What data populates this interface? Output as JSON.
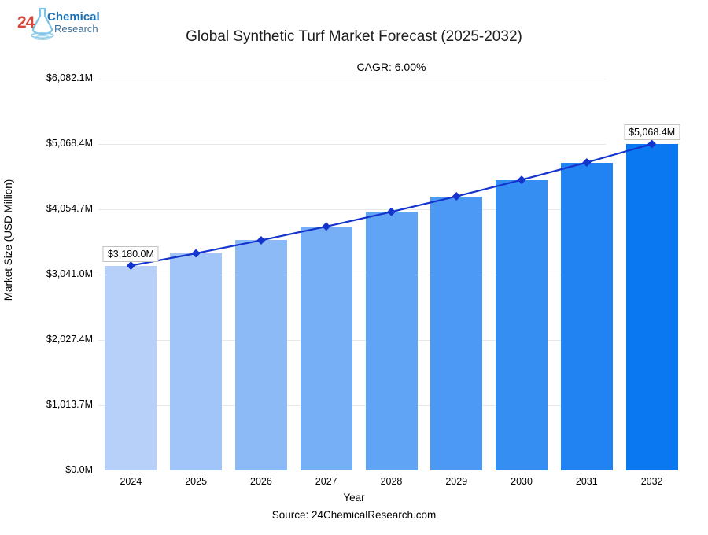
{
  "logo": {
    "number": "24",
    "line1": "Chemical",
    "line2": "Research"
  },
  "header": {
    "title": "Global Synthetic Turf Market Forecast (2025-2032)",
    "subtitle": "CAGR: 6.00%"
  },
  "source": "Source: 24ChemicalResearch.com",
  "chart_data": {
    "type": "bar",
    "title": "Global Synthetic Turf Market Forecast (2025-2032)",
    "subtitle": "CAGR: 6.00%",
    "xlabel": "Year",
    "ylabel": "Market Size (USD Million)",
    "categories": [
      "2024",
      "2025",
      "2026",
      "2027",
      "2028",
      "2029",
      "2030",
      "2031",
      "2032"
    ],
    "series": [
      {
        "name": "Market Size (bar)",
        "type": "bar",
        "values": [
          3180.0,
          3370.8,
          3573.0,
          3787.4,
          4014.7,
          4255.5,
          4510.9,
          4781.5,
          5068.4
        ]
      },
      {
        "name": "Trend (line with diamond markers)",
        "type": "line",
        "values": [
          3180.0,
          3370.8,
          3573.0,
          3787.4,
          4014.7,
          4255.5,
          4510.9,
          4781.5,
          5068.4
        ]
      }
    ],
    "ylim": [
      0,
      6082.1
    ],
    "yticks": [
      {
        "v": 0,
        "label": "$0.0M"
      },
      {
        "v": 1013.7,
        "label": "$1,013.7M"
      },
      {
        "v": 2027.4,
        "label": "$2,027.4M"
      },
      {
        "v": 3041.0,
        "label": "$3,041.0M"
      },
      {
        "v": 4054.7,
        "label": "$4,054.7M"
      },
      {
        "v": 5068.4,
        "label": "$5,068.4M"
      },
      {
        "v": 6082.1,
        "label": "$6,082.1M"
      }
    ],
    "grid": true,
    "legend": "none",
    "annotations": [
      {
        "index": 0,
        "label": "$3,180.0M"
      },
      {
        "index": 8,
        "label": "$5,068.4M"
      }
    ],
    "bar_colors": [
      "#b6d0f9",
      "#a1c5f8",
      "#8bbaf7",
      "#76aff6",
      "#60a4f5",
      "#4b99f4",
      "#358ef2",
      "#2083f1",
      "#0a78f0"
    ],
    "line_color": "#1434cd",
    "grid_color": "#e8e8e8"
  }
}
